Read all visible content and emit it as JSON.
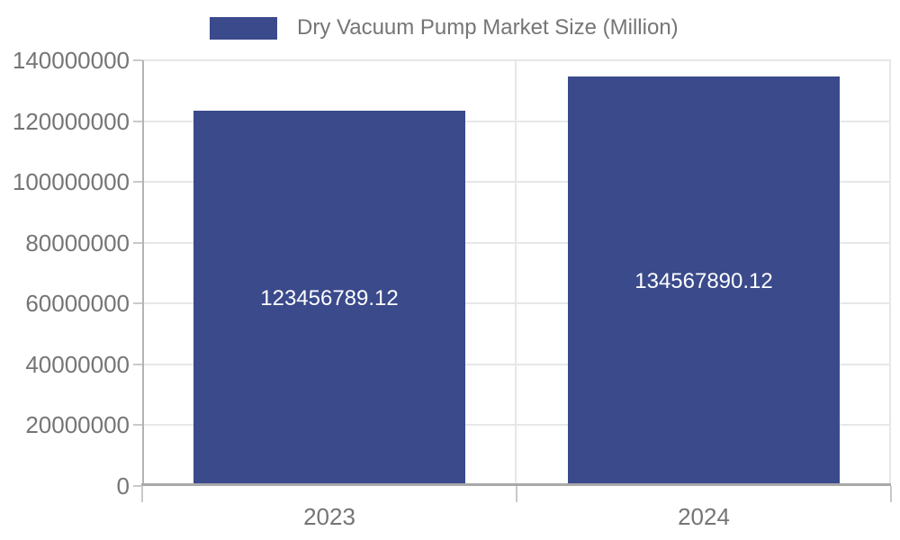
{
  "chart_data": {
    "type": "bar",
    "title": "Dry Vacuum Pump Market Size (Million)",
    "legend": [
      "Dry Vacuum Pump Market Size (Million)"
    ],
    "legend_position": "top-center",
    "categories": [
      "2023",
      "2024"
    ],
    "series": [
      {
        "name": "Dry Vacuum Pump Market Size (Million)",
        "values": [
          123456789.12,
          134567890.12
        ]
      }
    ],
    "value_labels": [
      "123456789.12",
      "134567890.12"
    ],
    "xlabel": "",
    "ylabel": "",
    "ylim": [
      0,
      140000000
    ],
    "y_ticks": [
      "0",
      "20000000",
      "40000000",
      "60000000",
      "80000000",
      "100000000",
      "120000000",
      "140000000"
    ],
    "grid": true,
    "colors": {
      "bar": "#3a4a8b",
      "value_label": "#ffffff",
      "axis_text": "#757575",
      "gridline": "#e7e7e7",
      "axis_line": "#a9a9a9"
    }
  }
}
